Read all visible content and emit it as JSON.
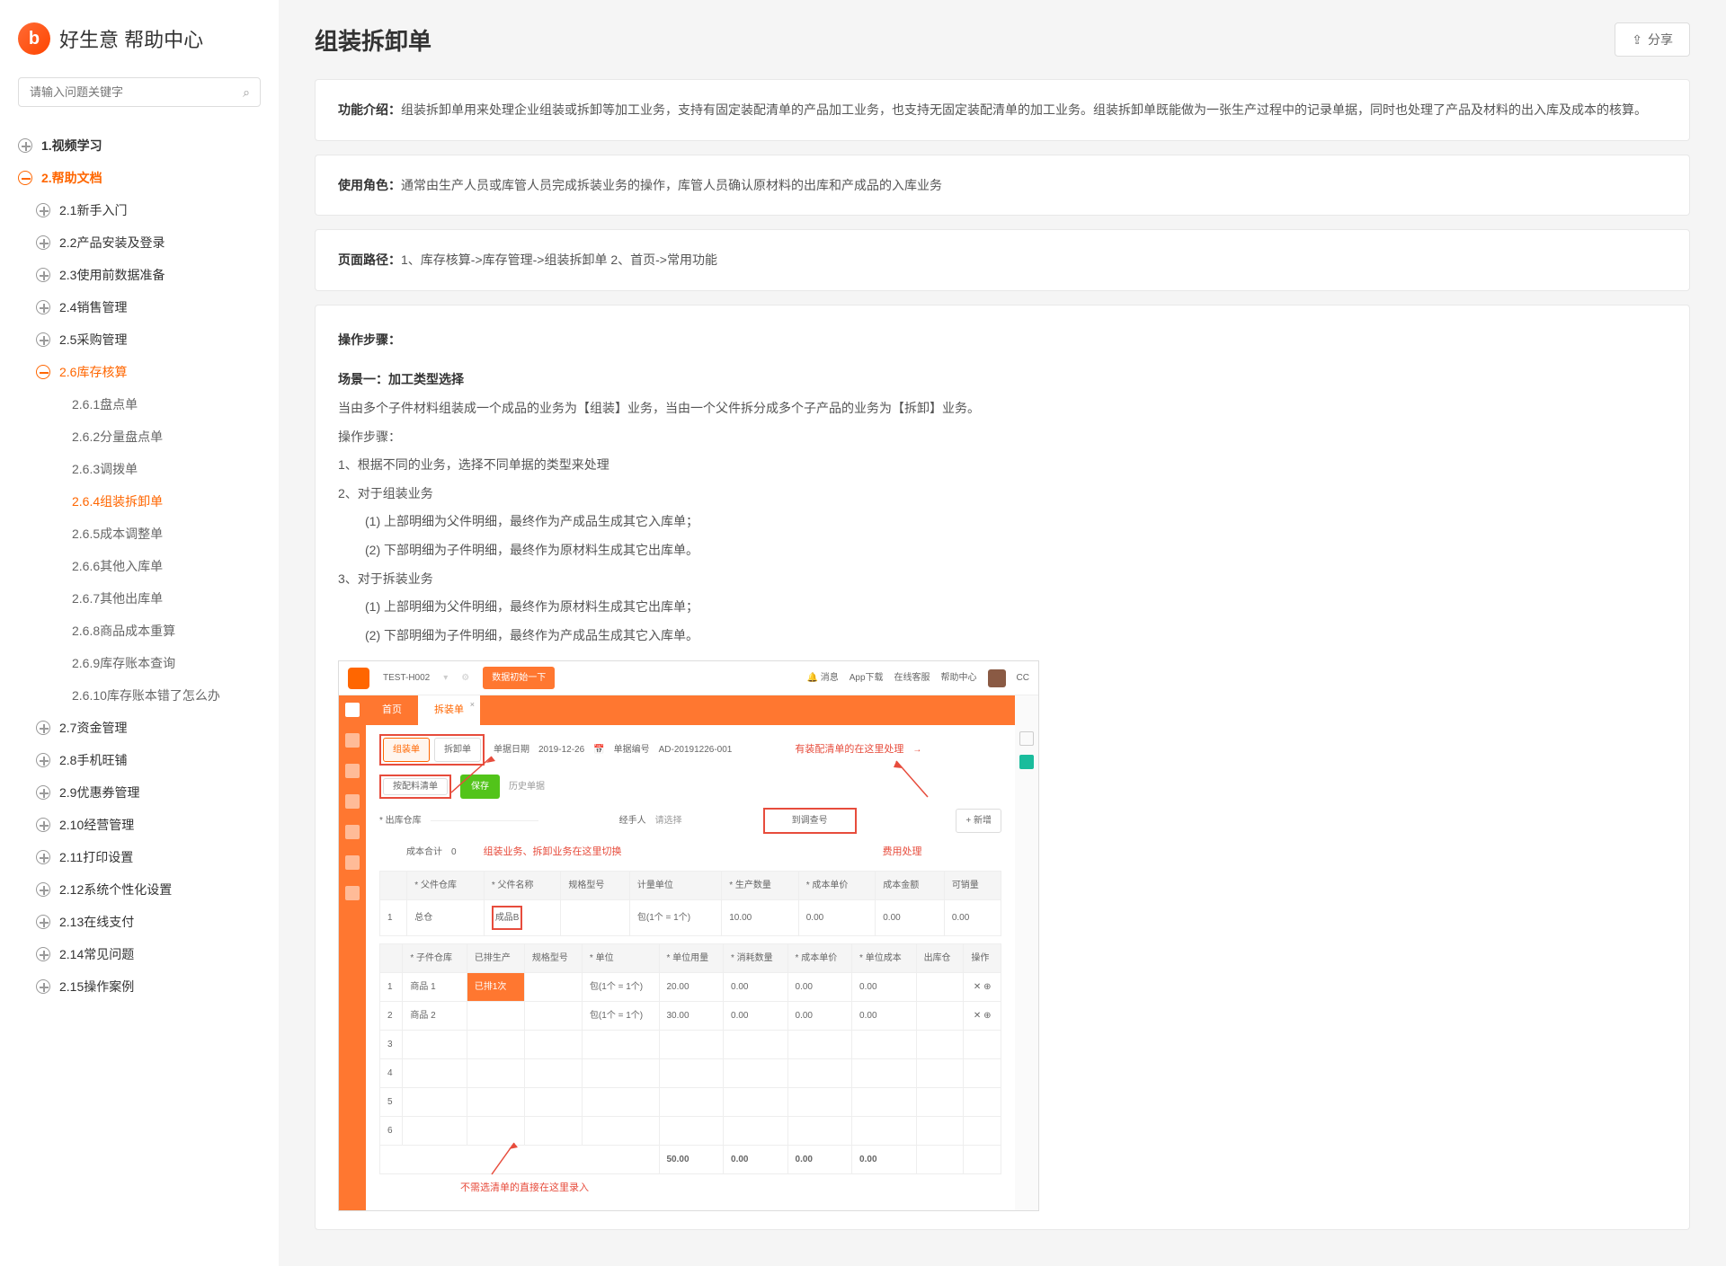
{
  "logo_text": "好生意 帮助中心",
  "search_placeholder": "请输入问题关键字",
  "nav": [
    {
      "label": "1.视频学习",
      "level": 1,
      "icon": "plus"
    },
    {
      "label": "2.帮助文档",
      "level": 1,
      "icon": "minus",
      "expanded": true
    },
    {
      "label": "2.1新手入门",
      "level": 2,
      "icon": "plus"
    },
    {
      "label": "2.2产品安装及登录",
      "level": 2,
      "icon": "plus"
    },
    {
      "label": "2.3使用前数据准备",
      "level": 2,
      "icon": "plus"
    },
    {
      "label": "2.4销售管理",
      "level": 2,
      "icon": "plus"
    },
    {
      "label": "2.5采购管理",
      "level": 2,
      "icon": "plus"
    },
    {
      "label": "2.6库存核算",
      "level": 2,
      "icon": "minus",
      "expanded": true
    },
    {
      "label": "2.6.1盘点单",
      "level": 3
    },
    {
      "label": "2.6.2分量盘点单",
      "level": 3
    },
    {
      "label": "2.6.3调拨单",
      "level": 3
    },
    {
      "label": "2.6.4组装拆卸单",
      "level": 3,
      "active": true
    },
    {
      "label": "2.6.5成本调整单",
      "level": 3
    },
    {
      "label": "2.6.6其他入库单",
      "level": 3
    },
    {
      "label": "2.6.7其他出库单",
      "level": 3
    },
    {
      "label": "2.6.8商品成本重算",
      "level": 3
    },
    {
      "label": "2.6.9库存账本查询",
      "level": 3
    },
    {
      "label": "2.6.10库存账本错了怎么办",
      "level": 3
    },
    {
      "label": "2.7资金管理",
      "level": 2,
      "icon": "plus"
    },
    {
      "label": "2.8手机旺铺",
      "level": 2,
      "icon": "plus"
    },
    {
      "label": "2.9优惠券管理",
      "level": 2,
      "icon": "plus"
    },
    {
      "label": "2.10经营管理",
      "level": 2,
      "icon": "plus"
    },
    {
      "label": "2.11打印设置",
      "level": 2,
      "icon": "plus"
    },
    {
      "label": "2.12系统个性化设置",
      "level": 2,
      "icon": "plus"
    },
    {
      "label": "2.13在线支付",
      "level": 2,
      "icon": "plus"
    },
    {
      "label": "2.14常见问题",
      "level": 2,
      "icon": "plus"
    },
    {
      "label": "2.15操作案例",
      "level": 2,
      "icon": "plus"
    }
  ],
  "page_title": "组装拆卸单",
  "share_label": "分享",
  "panels": {
    "intro_label": "功能介绍：",
    "intro_text": "组装拆卸单用来处理企业组装或拆卸等加工业务，支持有固定装配清单的产品加工业务，也支持无固定装配清单的加工业务。组装拆卸单既能做为一张生产过程中的记录单据，同时也处理了产品及材料的出入库及成本的核算。",
    "role_label": "使用角色：",
    "role_text": "通常由生产人员或库管人员完成拆装业务的操作，库管人员确认原材料的出库和产成品的入库业务",
    "path_label": "页面路径：",
    "path_text": "1、库存核算->库存管理->组装拆卸单 2、首页->常用功能"
  },
  "steps": {
    "title": "操作步骤：",
    "scene1": "场景一：加工类型选择",
    "scene1_desc": "当由多个子件材料组装成一个成品的业务为【组装】业务，当由一个父件拆分成多个子产品的业务为【拆卸】业务。",
    "substeps_title": "操作步骤：",
    "s1": "1、根据不同的业务，选择不同单据的类型来处理",
    "s2": "2、对于组装业务",
    "s2_1": "(1) 上部明细为父件明细，最终作为产成品生成其它入库单；",
    "s2_2": "(2) 下部明细为子件明细，最终作为原材料生成其它出库单。",
    "s3": "3、对于拆装业务",
    "s3_1": "(1) 上部明细为父件明细，最终作为原材料生成其它出库单；",
    "s3_2": "(2) 下部明细为子件明细，最终作为产成品生成其它入库单。"
  },
  "screenshot": {
    "topbar_id": "TEST-H002",
    "topbar_btn": "数据初始一下",
    "topbar_right": [
      "消息",
      "App下载",
      "在线客服",
      "帮助中心",
      "CC"
    ],
    "tab1": "首页",
    "tab2": "拆装单",
    "radio1": "组装单",
    "radio2": "拆卸单",
    "date_label": "单据日期",
    "date_value": "2019-12-26",
    "doc_label": "单据编号",
    "doc_value": "AD-20191226-001",
    "template_btn": "按配料清单",
    "action_btn": "保存",
    "more_btn": "历史单据",
    "add_btn": "+ 新增",
    "warehouse_label": "* 出库仓库",
    "handler_label": "经手人",
    "invoice_field": "到调查号",
    "cost_label": "成本合计",
    "cost_value": "0",
    "annotation1": "组装业务、拆卸业务在这里切换",
    "annotation2": "有装配清单的在这里处理",
    "annotation3": "费用处理",
    "annotation4": "不需选清单的直接在这里录入",
    "table1_headers": [
      "",
      "* 父件仓库",
      "* 父件名称",
      "规格型号",
      "计量单位",
      "* 生产数量",
      "* 成本单价",
      "成本金额",
      "可销量"
    ],
    "table1_row": [
      "1",
      "总仓",
      "成品B",
      "",
      "包(1个 = 1个)",
      "10.00",
      "0.00",
      "0.00",
      "0.00"
    ],
    "table2_headers": [
      "",
      "* 子件仓库",
      "已排生产",
      "规格型号",
      "* 单位",
      "* 单位用量",
      "* 消耗数量",
      "* 成本单价",
      "* 单位成本",
      "出库仓",
      "操作"
    ],
    "table2_rows": [
      [
        "1",
        "商品 1",
        "",
        "",
        "包(1个 = 1个)",
        "20.00",
        "0.00",
        "0.00",
        "0.00",
        "",
        ""
      ],
      [
        "2",
        "商品 2",
        "",
        "",
        "包(1个 = 1个)",
        "30.00",
        "0.00",
        "0.00",
        "0.00",
        "",
        ""
      ]
    ],
    "totals": [
      "50.00",
      "0.00",
      "0.00",
      "0.00"
    ]
  },
  "colors": {
    "accent": "#ff6600",
    "orange_deep": "#ff7730",
    "red_annotation": "#e74c3c",
    "green": "#52c41a",
    "teal": "#1abc9c",
    "border": "#e8e8e8",
    "text_muted": "#666"
  }
}
